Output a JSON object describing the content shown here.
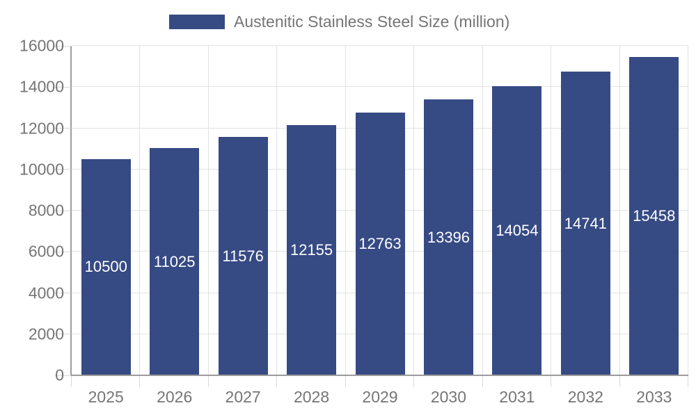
{
  "legend": {
    "label": "Austenitic Stainless Steel Size (million)"
  },
  "colors": {
    "bar": "#364a84",
    "axis_text": "#757575",
    "value_label": "#ffffff",
    "gridline": "#e2e2e2",
    "axis_line": "#9b9b9b",
    "tick": "#d9d9d9"
  },
  "chart_data": {
    "type": "bar",
    "title": "Austenitic Stainless Steel Size (million)",
    "categories": [
      "2025",
      "2026",
      "2027",
      "2028",
      "2029",
      "2030",
      "2031",
      "2032",
      "2033"
    ],
    "values": [
      10500,
      11025,
      11576,
      12155,
      12763,
      13396,
      14054,
      14741,
      15458
    ],
    "value_labels": [
      "10500",
      "11025",
      "11576",
      "12155",
      "12763",
      "13396",
      "14054",
      "14741",
      "15458"
    ],
    "xlabel": "",
    "ylabel": "",
    "ylim": [
      0,
      16000
    ],
    "ytick_step": 2000,
    "yticks": [
      "0",
      "2000",
      "4000",
      "6000",
      "8000",
      "10000",
      "12000",
      "14000",
      "16000"
    ],
    "grid": true,
    "legend_position": "top",
    "bar_label_position": "middle"
  }
}
